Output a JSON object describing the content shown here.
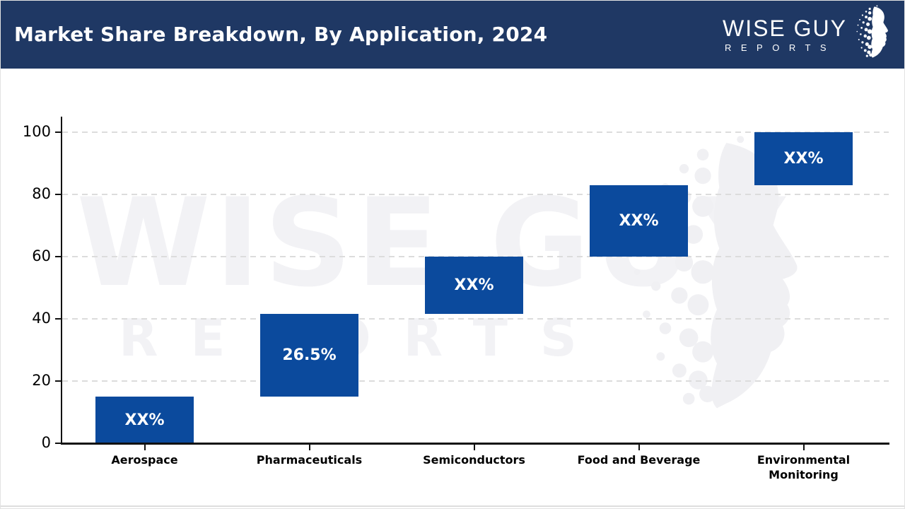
{
  "header": {
    "title": "Market Share Breakdown, By Application, 2024",
    "background_color": "#1F3864",
    "logo": {
      "line1": "WISE GUY",
      "line2": "REPORTS",
      "icon": "dotted-head-profile-icon"
    }
  },
  "watermark": {
    "line1": "WISE GUY",
    "line2": "REPORTS",
    "icon": "dotted-head-profile-icon"
  },
  "chart_data": {
    "type": "bar",
    "subtype": "waterfall",
    "title": "Market Share Breakdown, By Application, 2024",
    "categories": [
      "Aerospace",
      "Pharmaceuticals",
      "Semiconductors",
      "Food and Beverage",
      "Environmental Monitoring"
    ],
    "series": [
      {
        "name": "Market Share (%)",
        "bar_starts": [
          0,
          15,
          41.5,
          60,
          83
        ],
        "bar_ends": [
          15,
          41.5,
          60,
          83,
          100
        ],
        "bar_labels": [
          "XX%",
          "26.5%",
          "XX%",
          "XX%",
          "XX%"
        ]
      }
    ],
    "xlabel": "",
    "ylabel": "",
    "ylim": [
      0,
      100
    ],
    "yticks": [
      0,
      20,
      40,
      60,
      80,
      100
    ],
    "grid": "horizontal-dashed",
    "legend": "none",
    "bar_color": "#0B4A9D",
    "bar_label_color": "#FFFFFF",
    "axis_color": "#111111",
    "gridline_color": "#DCDCDC"
  }
}
